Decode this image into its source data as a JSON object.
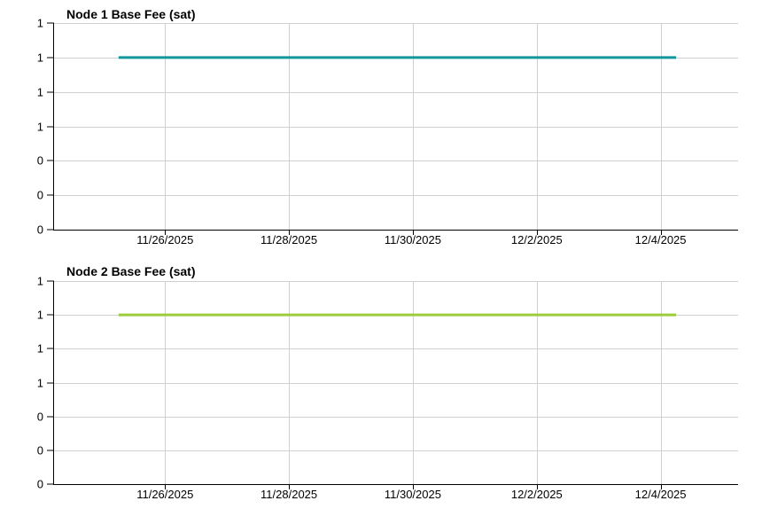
{
  "chart_data": [
    {
      "type": "line",
      "title": "Node 1 Base Fee (sat)",
      "xlabel": "",
      "ylabel": "",
      "ylim": [
        0,
        1.2
      ],
      "grid": true,
      "legend": false,
      "y_ticks": [
        1.2,
        1.0,
        0.8,
        0.6,
        0.4,
        0.2,
        0
      ],
      "y_tick_labels": [
        "1",
        "1",
        "1",
        "1",
        "0",
        "0",
        "0"
      ],
      "x_range": [
        "11/24/2025 05:00",
        "12/5/2025 06:00"
      ],
      "x_ticks": [
        "11/26/2025",
        "11/28/2025",
        "11/30/2025",
        "12/2/2025",
        "12/4/2025"
      ],
      "x_tick_labels": [
        "11/26/2025",
        "11/28/2025",
        "11/30/2025",
        "12/2/2025",
        "12/4/2025"
      ],
      "series": [
        {
          "name": "Node 1 Base Fee",
          "color": "#11969E",
          "points": [
            [
              "11/25/2025 06:00",
              1
            ],
            [
              "11/26/2025 00:00",
              1
            ],
            [
              "11/27/2025 00:00",
              1
            ],
            [
              "11/28/2025 00:00",
              1
            ],
            [
              "11/29/2025 00:00",
              1
            ],
            [
              "11/30/2025 00:00",
              1
            ],
            [
              "12/1/2025 00:00",
              1
            ],
            [
              "12/2/2025 00:00",
              1
            ],
            [
              "12/3/2025 00:00",
              1
            ],
            [
              "12/4/2025 00:00",
              1
            ],
            [
              "12/4/2025 06:00",
              1
            ]
          ]
        }
      ]
    },
    {
      "type": "line",
      "title": "Node 2 Base Fee (sat)",
      "xlabel": "",
      "ylabel": "",
      "ylim": [
        0,
        1.2
      ],
      "grid": true,
      "legend": false,
      "y_ticks": [
        1.2,
        1.0,
        0.8,
        0.6,
        0.4,
        0.2,
        0
      ],
      "y_tick_labels": [
        "1",
        "1",
        "1",
        "1",
        "0",
        "0",
        "0"
      ],
      "x_range": [
        "11/24/2025 05:00",
        "12/5/2025 06:00"
      ],
      "x_ticks": [
        "11/26/2025",
        "11/28/2025",
        "11/30/2025",
        "12/2/2025",
        "12/4/2025"
      ],
      "x_tick_labels": [
        "11/26/2025",
        "11/28/2025",
        "11/30/2025",
        "12/2/2025",
        "12/4/2025"
      ],
      "series": [
        {
          "name": "Node 2 Base Fee",
          "color": "#9CCB3B",
          "points": [
            [
              "11/25/2025 06:00",
              1
            ],
            [
              "11/26/2025 00:00",
              1
            ],
            [
              "11/27/2025 00:00",
              1
            ],
            [
              "11/28/2025 00:00",
              1
            ],
            [
              "11/29/2025 00:00",
              1
            ],
            [
              "11/30/2025 00:00",
              1
            ],
            [
              "12/1/2025 00:00",
              1
            ],
            [
              "12/2/2025 00:00",
              1
            ],
            [
              "12/3/2025 00:00",
              1
            ],
            [
              "12/4/2025 00:00",
              1
            ],
            [
              "12/4/2025 06:00",
              1
            ]
          ]
        }
      ]
    }
  ],
  "colors": {
    "node1_line": "#11969E",
    "node2_line": "#9CCB3B",
    "gridline": "#d0d0d0",
    "axis": "#000000"
  }
}
